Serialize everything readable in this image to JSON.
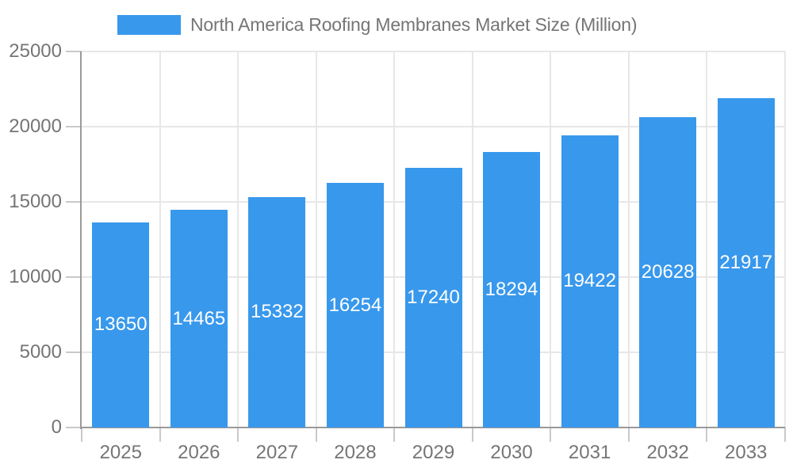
{
  "chart_data": {
    "type": "bar",
    "title": "North America Roofing Membranes Market Size (Million)",
    "categories": [
      "2025",
      "2026",
      "2027",
      "2028",
      "2029",
      "2030",
      "2031",
      "2032",
      "2033"
    ],
    "values": [
      13650,
      14465,
      15332,
      16254,
      17240,
      18294,
      19422,
      20628,
      21917
    ],
    "xlabel": "",
    "ylabel": "",
    "ylim": [
      0,
      25000
    ],
    "ytick_step": 5000,
    "ytick_labels": [
      "0",
      "5000",
      "10000",
      "15000",
      "20000",
      "25000"
    ],
    "grid": true,
    "legend_position": "top",
    "value_labels": "inside-center-white",
    "colors": {
      "bar": "#3898EC",
      "value_label": "#FFFFFF",
      "axis_text": "#757575",
      "axis_line": "#9A9A9A",
      "gridline": "#E7E7E7",
      "tick": "#C9C9C9",
      "background": "#FFFFFF"
    }
  }
}
